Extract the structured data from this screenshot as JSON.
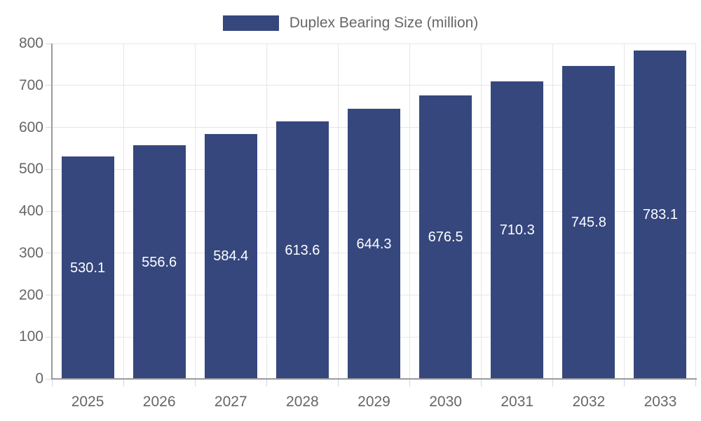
{
  "legend": {
    "label": "Duplex Bearing Size (million)"
  },
  "chart_data": {
    "type": "bar",
    "title": "",
    "xlabel": "",
    "ylabel": "",
    "categories": [
      "2025",
      "2026",
      "2027",
      "2028",
      "2029",
      "2030",
      "2031",
      "2032",
      "2033"
    ],
    "series": [
      {
        "name": "Duplex Bearing Size (million)",
        "values": [
          530.1,
          556.6,
          584.4,
          613.6,
          644.3,
          676.5,
          710.3,
          745.8,
          783.1
        ]
      }
    ],
    "value_labels": [
      "530.1",
      "556.6",
      "584.4",
      "613.6",
      "644.3",
      "676.5",
      "710.3",
      "745.8",
      "783.1"
    ],
    "ylim": [
      0,
      800
    ],
    "ytick_interval": 100,
    "yticks": [
      "0",
      "100",
      "200",
      "300",
      "400",
      "500",
      "600",
      "700",
      "800"
    ],
    "grid": true,
    "legend_position": "top",
    "colors": {
      "bar": "#35477d",
      "value_label_text": "#ffffff",
      "axis_text": "#666666",
      "gridline": "#e6e6e6",
      "axis_line": "#9a9a9a",
      "x_tick_mark": "#ccd6eb",
      "background": "#ffffff"
    }
  }
}
